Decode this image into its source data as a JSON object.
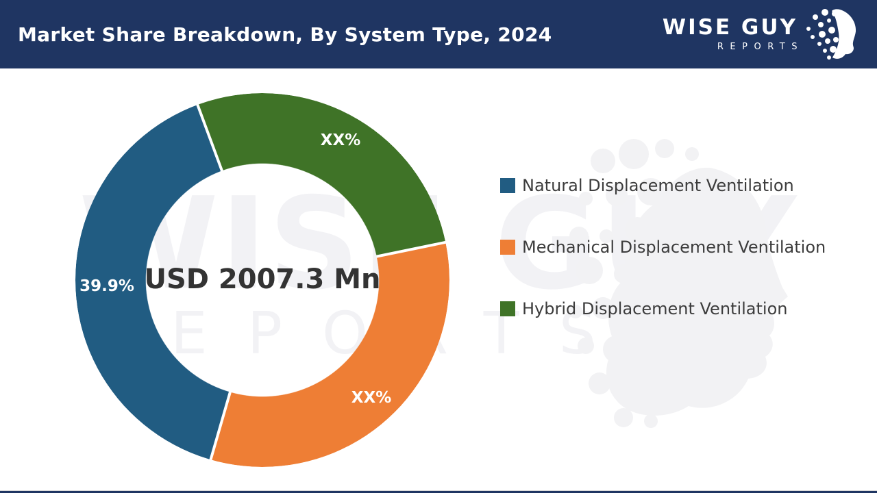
{
  "header": {
    "title": "Market Share Breakdown, By System Type, 2024",
    "background": "#1F3562",
    "logo": {
      "line1": "WISE GUY",
      "line2": "REPORTS",
      "icon": "dotted-head-profile-icon"
    }
  },
  "watermark": {
    "text1": "WISE GUY",
    "text2": "REPORTS",
    "face_icon": "dotted-head-profile-watermark",
    "color": "#F2F2F5"
  },
  "chart_data": {
    "type": "pie",
    "subtype": "donut",
    "title": "Market Share Breakdown, By System Type, 2024",
    "center_label": "USD 2007.3 Mn",
    "legend_position": "right",
    "inner_radius_ratio": 0.62,
    "start_angle_css_deg": 339.7,
    "direction": "clockwise",
    "gap_color": "#FFFFFF",
    "segments": [
      {
        "label": "Hybrid Displacement Ventilation",
        "display_value": "XX%",
        "value_pct_est": 27.4,
        "color": "#3F7327"
      },
      {
        "label": "Mechanical Displacement Ventilation",
        "display_value": "XX%",
        "value_pct_est": 32.7,
        "color": "#EE7E35"
      },
      {
        "label": "Natural Displacement Ventilation",
        "display_value": "39.9%",
        "value_pct_est": 39.9,
        "color": "#215C82"
      }
    ]
  },
  "theme": {
    "footer_bar": "#1F3562",
    "center_text_color": "#333333",
    "legend_text_color": "#3C3C3C"
  }
}
